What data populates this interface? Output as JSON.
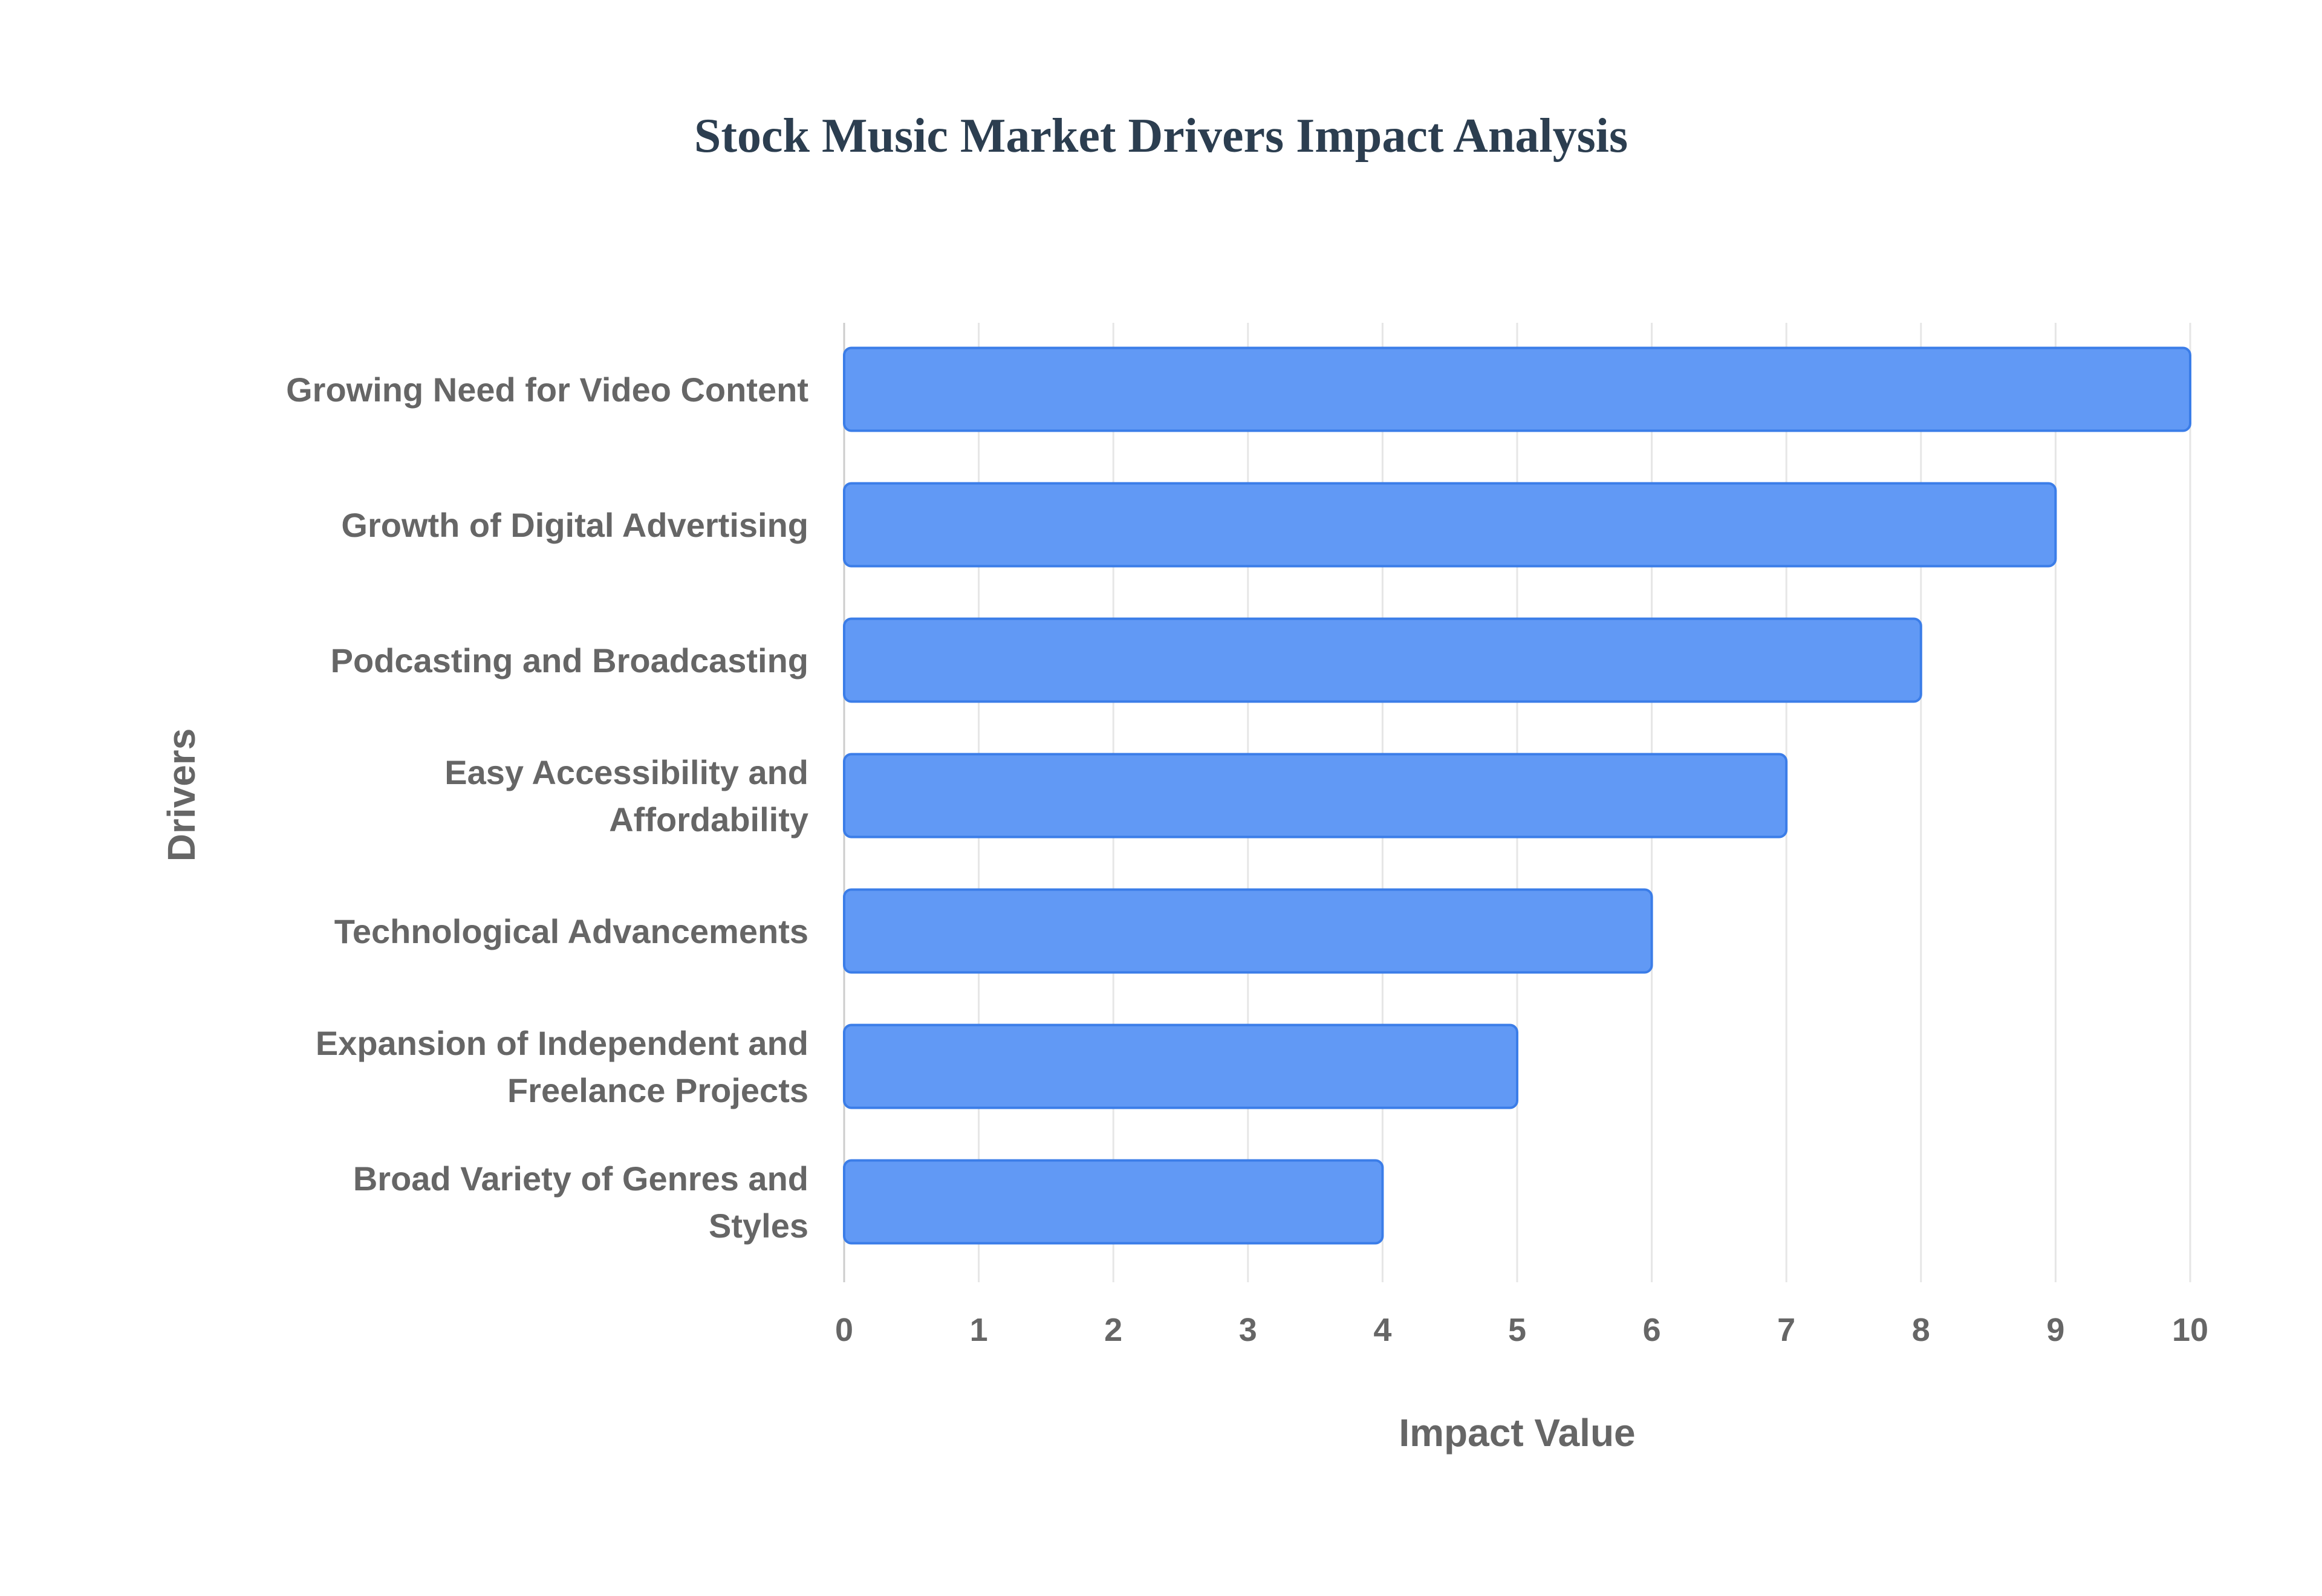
{
  "chart_data": {
    "type": "bar",
    "orientation": "horizontal",
    "title": "Stock Music Market Drivers Impact Analysis",
    "xlabel": "Impact Value",
    "ylabel": "Drivers",
    "xlim": [
      0,
      10
    ],
    "xticks": [
      "0",
      "1",
      "2",
      "3",
      "4",
      "5",
      "6",
      "7",
      "8",
      "9",
      "10"
    ],
    "grid": true,
    "categories": [
      [
        "Growing Need for Video Content"
      ],
      [
        "Growth of Digital Advertising"
      ],
      [
        "Podcasting and Broadcasting"
      ],
      [
        "Easy Accessibility and",
        "Affordability"
      ],
      [
        "Technological Advancements"
      ],
      [
        "Expansion of Independent and",
        "Freelance Projects"
      ],
      [
        "Broad Variety of Genres and",
        "Styles"
      ]
    ],
    "values": [
      10,
      9,
      8,
      7,
      6,
      5,
      4
    ],
    "colors": {
      "bar": "#6199f5",
      "bar_border": "#3b7de8",
      "grid": "#e6e6e6",
      "text": "#666666",
      "title": "#2c3e50"
    }
  }
}
